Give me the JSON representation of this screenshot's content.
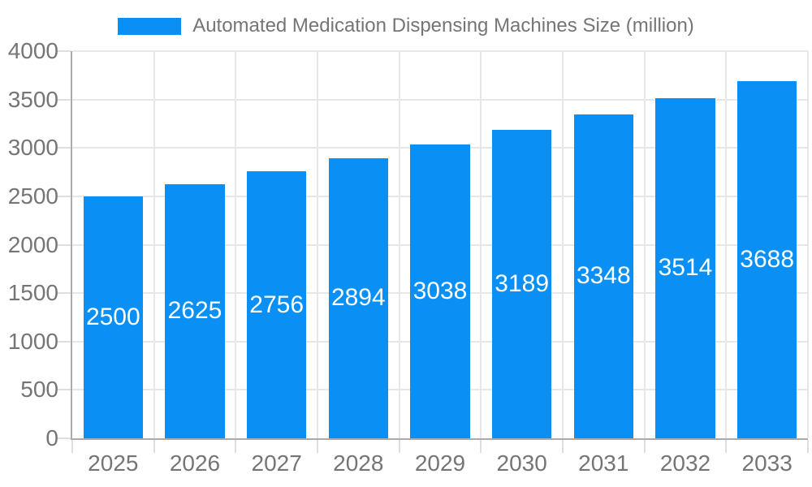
{
  "chart_data": {
    "type": "bar",
    "title": "Automated Medication Dispensing Machines Size (million)",
    "categories": [
      "2025",
      "2026",
      "2027",
      "2028",
      "2029",
      "2030",
      "2031",
      "2032",
      "2033"
    ],
    "series": [
      {
        "name": "Automated Medication Dispensing Machines Size (million)",
        "color": "#0a90f4",
        "values": [
          2500,
          2625,
          2756,
          2894,
          3038,
          3189,
          3348,
          3514,
          3688
        ]
      }
    ],
    "xlabel": "",
    "ylabel": "",
    "ylim": [
      0,
      4000
    ],
    "y_ticks": [
      0,
      500,
      1000,
      1500,
      2000,
      2500,
      3000,
      3500,
      4000
    ],
    "grid": true,
    "legend_position": "top",
    "value_labels": "inside-center",
    "value_label_color": "#ffffff",
    "axis_text_color": "#757575",
    "gridline_color": "#e7e7e7",
    "tick_color": "#dedede",
    "axis_line_color": "#ababab",
    "background_color": "#ffffff"
  }
}
